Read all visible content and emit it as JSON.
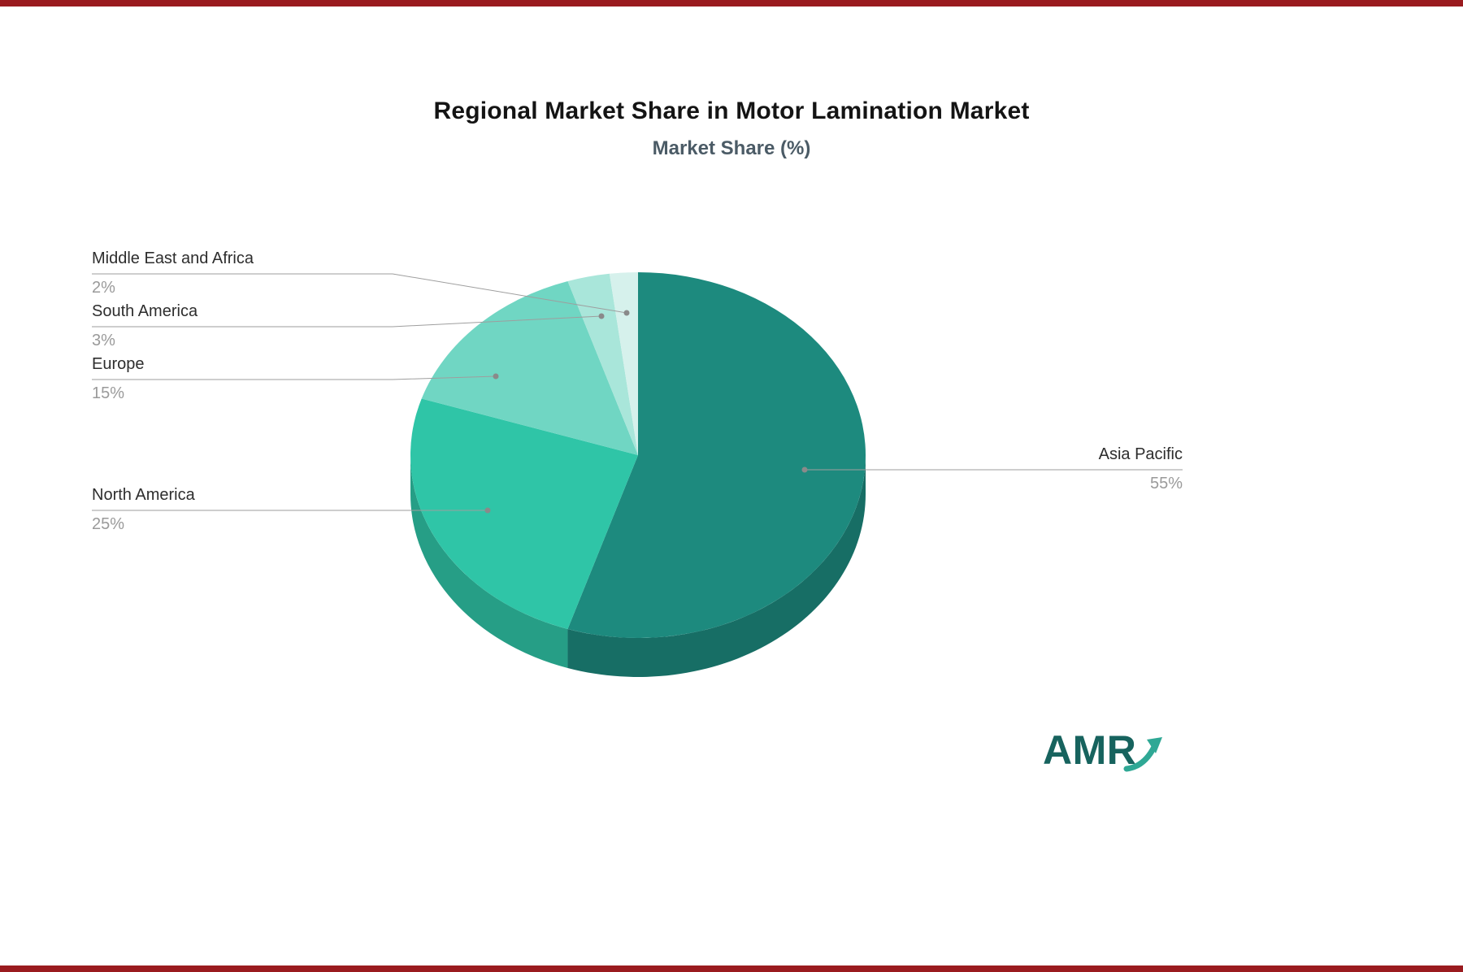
{
  "page": {
    "background": "#ffffff",
    "border_color": "#9a1b1f"
  },
  "header": {
    "title": "Regional Market Share in Motor Lamination Market",
    "subtitle": "Market Share (%)"
  },
  "chart_data": {
    "type": "pie",
    "style": "3d",
    "title": "Regional Market Share in Motor Lamination Market",
    "subtitle": "Market Share (%)",
    "unit": "%",
    "direction": "clockwise",
    "start_angle_deg": 0,
    "legend_position": "none",
    "labels": [
      "Asia Pacific",
      "North America",
      "Europe",
      "South America",
      "Middle East and Africa"
    ],
    "values": [
      55,
      25,
      15,
      3,
      2
    ],
    "display_values": [
      "55%",
      "25%",
      "15%",
      "3%",
      "2%"
    ],
    "colors": [
      "#1d8a7e",
      "#2fc5a7",
      "#70d6c3",
      "#a9e6da",
      "#d6f1ec"
    ],
    "callout_line_color": "#9e9e9e",
    "callout_dot_color": "#8a8a8a",
    "label_color": "#2d2d2d",
    "value_color": "#9a9a9a"
  },
  "branding": {
    "logo_text": "AMR",
    "logo_color": "#17635e",
    "arrow_color": "#2fa895"
  }
}
